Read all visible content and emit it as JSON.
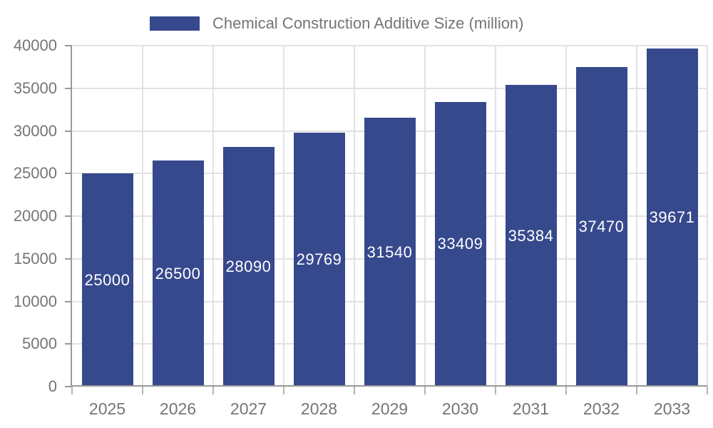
{
  "chart_data": {
    "type": "bar",
    "title": "Chemical Construction Additive Size (million)",
    "categories": [
      "2025",
      "2026",
      "2027",
      "2028",
      "2029",
      "2030",
      "2031",
      "2032",
      "2033"
    ],
    "values": [
      25000,
      26500,
      28090,
      29769,
      31540,
      33409,
      35384,
      37470,
      39671
    ],
    "bar_labels": [
      "25000",
      "26500",
      "28090",
      "29769",
      "31540",
      "33409",
      "35384",
      "37470",
      "39671"
    ],
    "xlabel": "",
    "ylabel": "",
    "ylim": [
      0,
      40000
    ],
    "yticks": [
      0,
      5000,
      10000,
      15000,
      20000,
      25000,
      30000,
      35000,
      40000
    ],
    "ytick_labels": [
      "0",
      "5000",
      "10000",
      "15000",
      "20000",
      "25000",
      "30000",
      "35000",
      "40000"
    ],
    "grid": true,
    "legend_position": "top",
    "colors": {
      "bar": "#37498D",
      "bar_label": "#FFFFFF",
      "grid": "#E2E2E2",
      "axis": "#999999",
      "tick": "#B5B5B5",
      "text": "#757575"
    }
  }
}
